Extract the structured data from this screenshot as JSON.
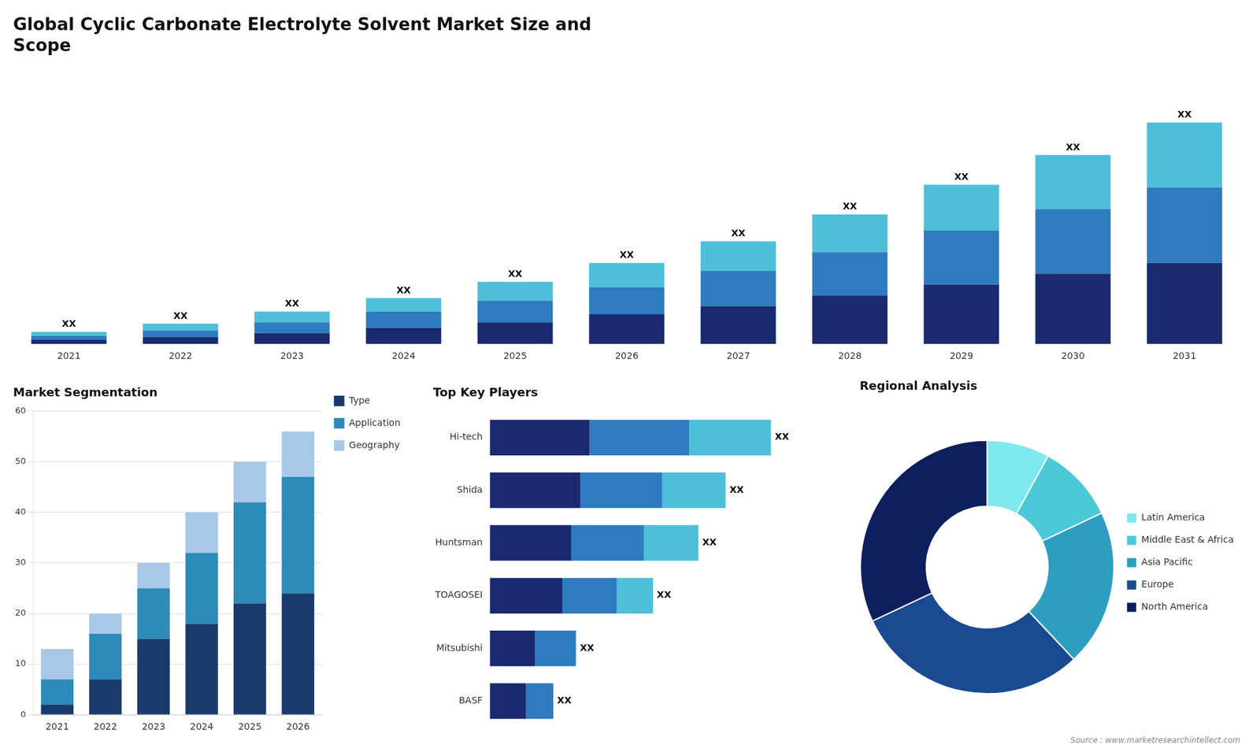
{
  "chart_data": [
    {
      "type": "bar",
      "title": "Global Cyclic Carbonate Electrolyte Solvent Market Size and\nScope",
      "categories": [
        "2021",
        "2022",
        "2023",
        "2024",
        "2025",
        "2026",
        "2027",
        "2028",
        "2029",
        "2030",
        "2031"
      ],
      "series": [
        {
          "color": "#1a2a6e",
          "values": [
            1.5,
            2.5,
            4,
            6,
            8,
            11,
            14,
            18,
            22,
            26,
            30
          ]
        },
        {
          "color": "#2e7bbf",
          "values": [
            1.5,
            2.5,
            4,
            6,
            8,
            10,
            13,
            16,
            20,
            24,
            28
          ]
        },
        {
          "color": "#4dbfd8",
          "values": [
            1.5,
            2.5,
            4,
            5,
            7,
            9,
            11,
            14,
            17,
            20,
            24
          ],
          "value_labels": [
            "XX",
            "XX",
            "XX",
            "XX",
            "XX",
            "XX",
            "XX",
            "XX",
            "XX",
            "XX",
            "XX"
          ]
        }
      ],
      "stacked": true,
      "data_labels": true,
      "ylim": [
        0,
        102.5
      ],
      "tick_labels": "x"
    },
    {
      "type": "bar",
      "title": "Market Segmentation",
      "categories": [
        "2021",
        "2022",
        "2023",
        "2024",
        "2025",
        "2026"
      ],
      "series": [
        {
          "name": "Type",
          "color": "#1a3a6b",
          "values": [
            2,
            7,
            15,
            18,
            22,
            24
          ]
        },
        {
          "name": "Application",
          "color": "#2e8ab8",
          "values": [
            5,
            9,
            10,
            14,
            20,
            23
          ]
        },
        {
          "name": "Geography",
          "color": "#a8c8e8",
          "values": [
            6,
            4,
            5,
            8,
            8,
            9
          ]
        }
      ],
      "stacked": true,
      "ylim": [
        0,
        60
      ],
      "yticks": [
        0,
        10,
        20,
        30,
        40,
        50,
        60
      ],
      "grid": true,
      "legend": "right"
    },
    {
      "type": "bar",
      "orientation": "horizontal",
      "title": "Top Key Players",
      "categories": [
        "Hi-tech",
        "Shida",
        "Huntsman",
        "TOAGOSEI",
        "Mitsubishi",
        "BASF"
      ],
      "series": [
        {
          "color": "#1a2a6e",
          "values": [
            22,
            20,
            18,
            16,
            10,
            8
          ]
        },
        {
          "color": "#2e7bbf",
          "values": [
            22,
            18,
            16,
            12,
            9,
            6
          ]
        },
        {
          "color": "#4dbfd8",
          "values": [
            18,
            14,
            12,
            8,
            0,
            0
          ],
          "value_labels": [
            "XX",
            "XX",
            "XX",
            "XX",
            "XX",
            "XX"
          ]
        }
      ],
      "stacked": true,
      "data_labels": true,
      "xlim": [
        0,
        70
      ],
      "tick_labels": "y"
    },
    {
      "type": "doughnut",
      "title": "Regional Analysis",
      "categories": [
        "Latin America",
        "Middle East &\nAfrica",
        "Asia Pacific",
        "Europe",
        "North America"
      ],
      "values": [
        8,
        10,
        20,
        30,
        32
      ],
      "colors": [
        "#7de8ee",
        "#4cc8d8",
        "#2e9ec0",
        "#1a4a8f",
        "#0d1f5c"
      ],
      "legend": "right",
      "annotations": [
        "Source : www.marketresearchintellect.com"
      ]
    }
  ]
}
